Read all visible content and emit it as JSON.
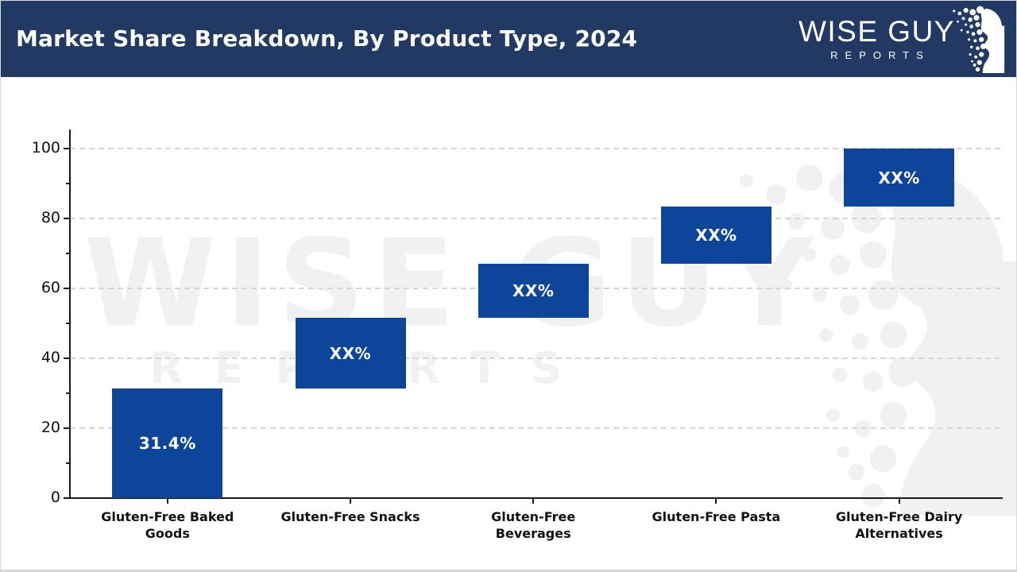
{
  "header": {
    "title": "Market Share Breakdown, By Product Type, 2024",
    "logo": {
      "line1": "WISE GUY",
      "line2": "REPORTS"
    }
  },
  "watermark": {
    "line1": "WISE GUY",
    "line2": "REPORTS"
  },
  "colors": {
    "header_bg": "#223a63",
    "bar": "#0c4599",
    "grid": "#d6d6d6",
    "axis": "#1a1a1a",
    "category_text": "#111111",
    "bar_label_text": "#ffffff",
    "watermark": "#f1f1f1"
  },
  "chart_data": {
    "type": "bar",
    "subtype": "waterfall",
    "title": "Market Share Breakdown, By Product Type, 2024",
    "orientation": "vertical",
    "legend": "none",
    "grid": "horizontal-dashed",
    "ylim": [
      0,
      100
    ],
    "yticks": [
      0,
      20,
      40,
      60,
      80,
      100
    ],
    "minor_yticks": [
      10,
      30,
      50,
      70,
      90
    ],
    "bar_color": "#0c4599",
    "categories": [
      "Gluten-Free Baked Goods",
      "Gluten-Free Snacks",
      "Gluten-Free Beverages",
      "Gluten-Free Pasta",
      "Gluten-Free Dairy Alternatives"
    ],
    "category_lines": [
      [
        "Gluten-Free Baked",
        "Goods"
      ],
      [
        "Gluten-Free Snacks"
      ],
      [
        "Gluten-Free",
        "Beverages"
      ],
      [
        "Gluten-Free Pasta"
      ],
      [
        "Gluten-Free Dairy",
        "Alternatives"
      ]
    ],
    "series": [
      {
        "name": "Market Share",
        "segments": [
          {
            "category": "Gluten-Free Baked Goods",
            "start": 0,
            "end": 31.4,
            "value": 31.4,
            "label": "31.4%"
          },
          {
            "category": "Gluten-Free Snacks",
            "start": 31.4,
            "end": 51.5,
            "value": 20.1,
            "label": "XX%"
          },
          {
            "category": "Gluten-Free Beverages",
            "start": 51.5,
            "end": 67.1,
            "value": 15.6,
            "label": "XX%"
          },
          {
            "category": "Gluten-Free Pasta",
            "start": 67.1,
            "end": 83.4,
            "value": 16.3,
            "label": "XX%"
          },
          {
            "category": "Gluten-Free Dairy Alternatives",
            "start": 83.4,
            "end": 100,
            "value": 16.6,
            "label": "XX%"
          }
        ]
      }
    ]
  }
}
